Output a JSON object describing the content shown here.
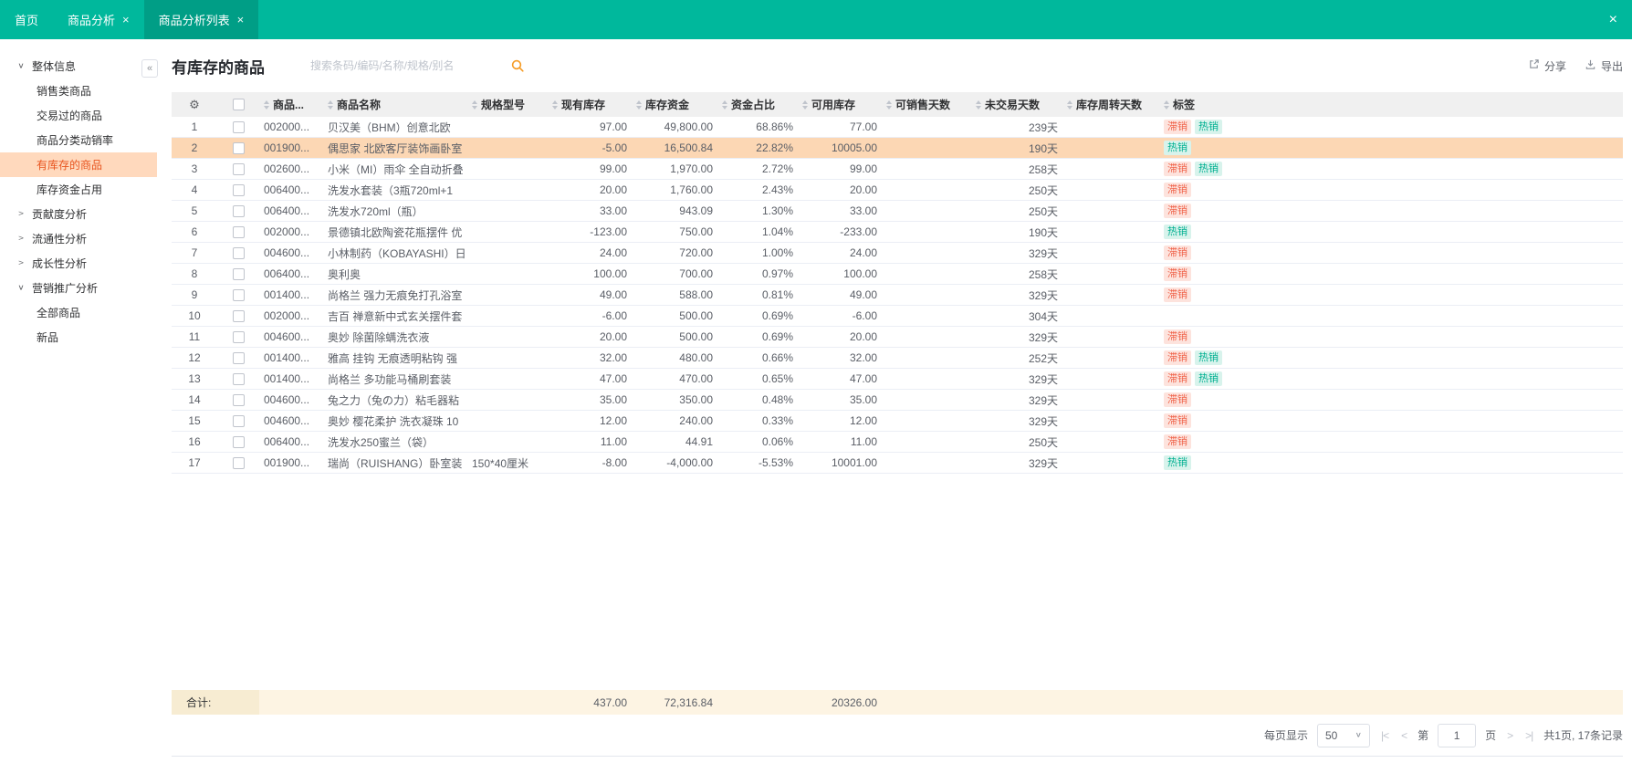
{
  "colors": {
    "topbar_bg": "#00b89c",
    "active_tab_bg": "#009e86",
    "sidebar_active_bg": "#ffd9bd",
    "sidebar_active_fg": "#e8541e",
    "selected_row_bg": "#fcd7b4",
    "total_row_bg": "#fdf4e3",
    "search_icon": "#f59a23"
  },
  "icons": {
    "gear": "⚙",
    "caret_down": "∨",
    "caret_right": ">",
    "dropdown": "∨",
    "page_first": "|<",
    "page_prev": "<",
    "page_next": ">",
    "page_last": ">|"
  },
  "topbar": {
    "close_all_label": "×",
    "tabs": [
      {
        "label": "首页",
        "closable": false,
        "active": false
      },
      {
        "label": "商品分析",
        "closable": true,
        "active": false
      },
      {
        "label": "商品分析列表",
        "closable": true,
        "active": true
      }
    ]
  },
  "sidebar": {
    "collapse_label": "«",
    "items": [
      {
        "label": "整体信息",
        "level": 0,
        "caret": "down",
        "active": false
      },
      {
        "label": "销售类商品",
        "level": 1,
        "caret": null,
        "active": false
      },
      {
        "label": "交易过的商品",
        "level": 1,
        "caret": null,
        "active": false
      },
      {
        "label": "商品分类动销率",
        "level": 1,
        "caret": null,
        "active": false
      },
      {
        "label": "有库存的商品",
        "level": 1,
        "caret": null,
        "active": true
      },
      {
        "label": "库存资金占用",
        "level": 1,
        "caret": null,
        "active": false
      },
      {
        "label": "贡献度分析",
        "level": 0,
        "caret": "right",
        "active": false
      },
      {
        "label": "流通性分析",
        "level": 0,
        "caret": "right",
        "active": false
      },
      {
        "label": "成长性分析",
        "level": 0,
        "caret": "right",
        "active": false
      },
      {
        "label": "营销推广分析",
        "level": 0,
        "caret": "down",
        "active": false
      },
      {
        "label": "全部商品",
        "level": 1,
        "caret": null,
        "active": false
      },
      {
        "label": "新品",
        "level": 1,
        "caret": null,
        "active": false
      }
    ]
  },
  "main": {
    "title": "有库存的商品",
    "search": {
      "placeholder": "搜索条码/编码/名称/规格/别名"
    },
    "actions": {
      "share": "分享",
      "export": "导出"
    }
  },
  "table": {
    "columns": [
      {
        "key": "index",
        "type": "gear",
        "label": ""
      },
      {
        "key": "check",
        "type": "checkbox",
        "label": ""
      },
      {
        "key": "code",
        "label": "商品...",
        "sortable": true
      },
      {
        "key": "name",
        "label": "商品名称",
        "sortable": true
      },
      {
        "key": "spec",
        "label": "规格型号",
        "sortable": true
      },
      {
        "key": "stock",
        "label": "现有库存",
        "sortable": true
      },
      {
        "key": "fund",
        "label": "库存资金",
        "sortable": true
      },
      {
        "key": "ratio",
        "label": "资金占比",
        "sortable": true
      },
      {
        "key": "available",
        "label": "可用库存",
        "sortable": true
      },
      {
        "key": "sellable_days",
        "label": "可销售天数",
        "sortable": true
      },
      {
        "key": "no_trade_days",
        "label": "未交易天数",
        "sortable": true
      },
      {
        "key": "turnover_days",
        "label": "库存周转天数",
        "sortable": true
      },
      {
        "key": "tags",
        "label": "标签",
        "sortable": true
      }
    ],
    "tag_styles": {
      "滞销": {
        "bg": "#fde3dd",
        "fg": "#f0634a"
      },
      "热销": {
        "bg": "#d8f3ec",
        "fg": "#00b091"
      }
    },
    "rows": [
      {
        "index": "1",
        "code": "002000...",
        "name": "贝汉美（BHM）创意北欧",
        "spec": "",
        "stock": "97.00",
        "fund": "49,800.00",
        "ratio": "68.86%",
        "available": "77.00",
        "sellable_days": "",
        "no_trade_days": "239天",
        "turnover_days": "",
        "tags": [
          "滞销",
          "热销"
        ],
        "selected": false
      },
      {
        "index": "2",
        "code": "001900...",
        "name": "偶思家 北欧客厅装饰画卧室",
        "spec": "",
        "stock": "-5.00",
        "fund": "16,500.84",
        "ratio": "22.82%",
        "available": "10005.00",
        "sellable_days": "",
        "no_trade_days": "190天",
        "turnover_days": "",
        "tags": [
          "热销"
        ],
        "selected": true
      },
      {
        "index": "3",
        "code": "002600...",
        "name": "小米（MI）雨伞 全自动折叠",
        "spec": "",
        "stock": "99.00",
        "fund": "1,970.00",
        "ratio": "2.72%",
        "available": "99.00",
        "sellable_days": "",
        "no_trade_days": "258天",
        "turnover_days": "",
        "tags": [
          "滞销",
          "热销"
        ],
        "selected": false
      },
      {
        "index": "4",
        "code": "006400...",
        "name": "洗发水套装（3瓶720ml+1",
        "spec": "",
        "stock": "20.00",
        "fund": "1,760.00",
        "ratio": "2.43%",
        "available": "20.00",
        "sellable_days": "",
        "no_trade_days": "250天",
        "turnover_days": "",
        "tags": [
          "滞销"
        ],
        "selected": false
      },
      {
        "index": "5",
        "code": "006400...",
        "name": "洗发水720ml（瓶）",
        "spec": "",
        "stock": "33.00",
        "fund": "943.09",
        "ratio": "1.30%",
        "available": "33.00",
        "sellable_days": "",
        "no_trade_days": "250天",
        "turnover_days": "",
        "tags": [
          "滞销"
        ],
        "selected": false
      },
      {
        "index": "6",
        "code": "002000...",
        "name": "景德镇北欧陶瓷花瓶摆件 优",
        "spec": "",
        "stock": "-123.00",
        "fund": "750.00",
        "ratio": "1.04%",
        "available": "-233.00",
        "sellable_days": "",
        "no_trade_days": "190天",
        "turnover_days": "",
        "tags": [
          "热销"
        ],
        "selected": false
      },
      {
        "index": "7",
        "code": "004600...",
        "name": "小林制药（KOBAYASHI）日",
        "spec": "",
        "stock": "24.00",
        "fund": "720.00",
        "ratio": "1.00%",
        "available": "24.00",
        "sellable_days": "",
        "no_trade_days": "329天",
        "turnover_days": "",
        "tags": [
          "滞销"
        ],
        "selected": false
      },
      {
        "index": "8",
        "code": "006400...",
        "name": "奥利奥",
        "spec": "",
        "stock": "100.00",
        "fund": "700.00",
        "ratio": "0.97%",
        "available": "100.00",
        "sellable_days": "",
        "no_trade_days": "258天",
        "turnover_days": "",
        "tags": [
          "滞销"
        ],
        "selected": false
      },
      {
        "index": "9",
        "code": "001400...",
        "name": "尚格兰 强力无痕免打孔浴室",
        "spec": "",
        "stock": "49.00",
        "fund": "588.00",
        "ratio": "0.81%",
        "available": "49.00",
        "sellable_days": "",
        "no_trade_days": "329天",
        "turnover_days": "",
        "tags": [
          "滞销"
        ],
        "selected": false
      },
      {
        "index": "10",
        "code": "002000...",
        "name": "吉百 禅意新中式玄关摆件套",
        "spec": "",
        "stock": "-6.00",
        "fund": "500.00",
        "ratio": "0.69%",
        "available": "-6.00",
        "sellable_days": "",
        "no_trade_days": "304天",
        "turnover_days": "",
        "tags": [],
        "selected": false
      },
      {
        "index": "11",
        "code": "004600...",
        "name": "奥妙 除菌除螨洗衣液",
        "spec": "",
        "stock": "20.00",
        "fund": "500.00",
        "ratio": "0.69%",
        "available": "20.00",
        "sellable_days": "",
        "no_trade_days": "329天",
        "turnover_days": "",
        "tags": [
          "滞销"
        ],
        "selected": false
      },
      {
        "index": "12",
        "code": "001400...",
        "name": "雅高 挂钩 无痕透明粘钩 强",
        "spec": "",
        "stock": "32.00",
        "fund": "480.00",
        "ratio": "0.66%",
        "available": "32.00",
        "sellable_days": "",
        "no_trade_days": "252天",
        "turnover_days": "",
        "tags": [
          "滞销",
          "热销"
        ],
        "selected": false
      },
      {
        "index": "13",
        "code": "001400...",
        "name": "尚格兰 多功能马桶刷套装",
        "spec": "",
        "stock": "47.00",
        "fund": "470.00",
        "ratio": "0.65%",
        "available": "47.00",
        "sellable_days": "",
        "no_trade_days": "329天",
        "turnover_days": "",
        "tags": [
          "滞销",
          "热销"
        ],
        "selected": false
      },
      {
        "index": "14",
        "code": "004600...",
        "name": "兔之力（兔の力）粘毛器粘",
        "spec": "",
        "stock": "35.00",
        "fund": "350.00",
        "ratio": "0.48%",
        "available": "35.00",
        "sellable_days": "",
        "no_trade_days": "329天",
        "turnover_days": "",
        "tags": [
          "滞销"
        ],
        "selected": false
      },
      {
        "index": "15",
        "code": "004600...",
        "name": "奥妙 樱花柔护 洗衣凝珠 10",
        "spec": "",
        "stock": "12.00",
        "fund": "240.00",
        "ratio": "0.33%",
        "available": "12.00",
        "sellable_days": "",
        "no_trade_days": "329天",
        "turnover_days": "",
        "tags": [
          "滞销"
        ],
        "selected": false
      },
      {
        "index": "16",
        "code": "006400...",
        "name": "洗发水250蜜兰（袋）",
        "spec": "",
        "stock": "11.00",
        "fund": "44.91",
        "ratio": "0.06%",
        "available": "11.00",
        "sellable_days": "",
        "no_trade_days": "250天",
        "turnover_days": "",
        "tags": [
          "滞销"
        ],
        "selected": false
      },
      {
        "index": "17",
        "code": "001900...",
        "name": "瑞尚（RUISHANG）卧室装",
        "spec": "150*40厘米",
        "stock": "-8.00",
        "fund": "-4,000.00",
        "ratio": "-5.53%",
        "available": "10001.00",
        "sellable_days": "",
        "no_trade_days": "329天",
        "turnover_days": "",
        "tags": [
          "热销"
        ],
        "selected": false
      }
    ]
  },
  "totals": {
    "label": "合计:",
    "stock": "437.00",
    "fund": "72,316.84",
    "available": "20326.00"
  },
  "pagination": {
    "page_size_label": "每页显示",
    "page_size": "50",
    "page_prefix": "第",
    "page_value": "1",
    "page_suffix": "页",
    "summary": "共1页, 17条记录"
  }
}
